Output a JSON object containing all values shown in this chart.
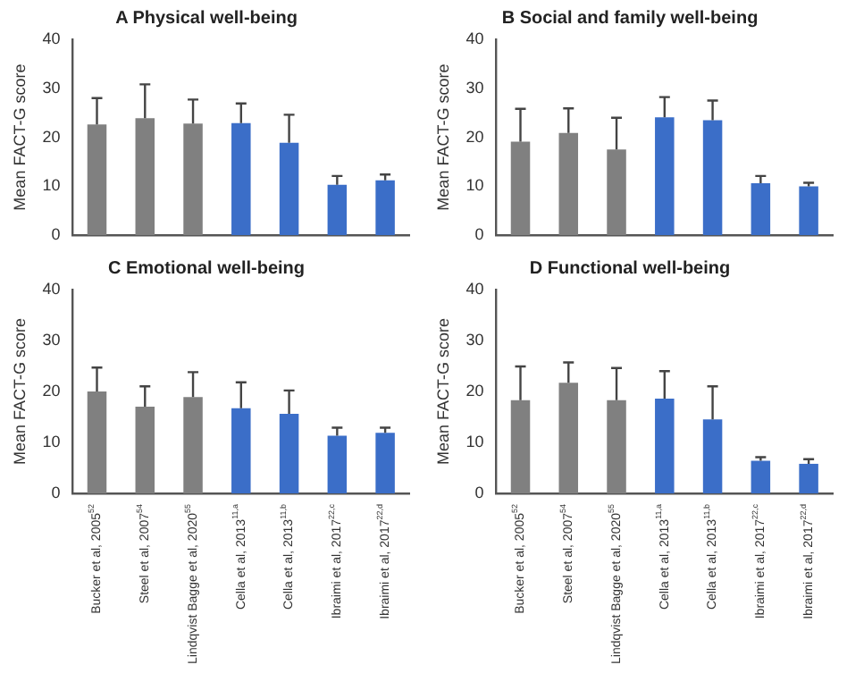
{
  "chart_data": [
    {
      "type": "bar",
      "title": "A Physical well-being",
      "ylabel": "Mean FACT-G score",
      "categories": [
        null,
        null,
        null,
        null,
        null,
        null,
        null
      ],
      "values": [
        22.6,
        23.9,
        22.8,
        22.9,
        18.9,
        10.3,
        11.2
      ],
      "errors": [
        [
          22.6,
          28.0
        ],
        [
          23.9,
          30.8
        ],
        [
          22.8,
          27.7
        ],
        [
          22.9,
          26.9
        ],
        [
          18.9,
          24.6
        ],
        [
          10.3,
          12.1
        ],
        [
          11.2,
          12.4
        ]
      ],
      "colors": [
        "#808080",
        "#808080",
        "#808080",
        "#3b6ec8",
        "#3b6ec8",
        "#3b6ec8",
        "#3b6ec8"
      ],
      "ylim": [
        0,
        40
      ],
      "yticks": [
        0,
        10,
        20,
        30,
        40
      ],
      "grid": false,
      "legend": false,
      "tick_labels": "y"
    },
    {
      "type": "bar",
      "title": "B Social and family well-being",
      "ylabel": "Mean FACT-G score",
      "categories": [
        null,
        null,
        null,
        null,
        null,
        null,
        null
      ],
      "values": [
        19.1,
        20.9,
        17.5,
        24.1,
        23.5,
        10.6,
        10.0
      ],
      "errors": [
        [
          19.1,
          25.8
        ],
        [
          20.9,
          25.9
        ],
        [
          17.5,
          24.0
        ],
        [
          24.1,
          28.2
        ],
        [
          23.5,
          27.5
        ],
        [
          10.6,
          12.1
        ],
        [
          10.0,
          10.7
        ]
      ],
      "colors": [
        "#808080",
        "#808080",
        "#808080",
        "#3b6ec8",
        "#3b6ec8",
        "#3b6ec8",
        "#3b6ec8"
      ],
      "ylim": [
        0,
        40
      ],
      "yticks": [
        0,
        10,
        20,
        30,
        40
      ],
      "grid": false,
      "legend": false,
      "tick_labels": "y"
    },
    {
      "type": "bar",
      "title": "C Emotional well-being",
      "ylabel": "Mean FACT-G score",
      "categories": [
        "Bucker et al, 2005$^{52}$",
        "Steel et al, 2007$^{54}$",
        "Lindqvist Bagge et al, 2020$^{55}$",
        "Cella et al, 2013$^{11,a}$",
        "Cella et al, 2013$^{11,b}$",
        "Ibraimi et al, 2017$^{22,c}$",
        "Ibraimi et al, 2017$^{22,d}$"
      ],
      "values": [
        20.0,
        17.0,
        18.9,
        16.7,
        15.6,
        11.3,
        11.9
      ],
      "errors": [
        [
          20.0,
          24.7
        ],
        [
          17.0,
          21.0
        ],
        [
          18.9,
          23.8
        ],
        [
          16.7,
          21.8
        ],
        [
          15.6,
          20.2
        ],
        [
          11.3,
          12.9
        ],
        [
          11.9,
          12.9
        ]
      ],
      "colors": [
        "#808080",
        "#808080",
        "#808080",
        "#3b6ec8",
        "#3b6ec8",
        "#3b6ec8",
        "#3b6ec8"
      ],
      "ylim": [
        0,
        40
      ],
      "yticks": [
        0,
        10,
        20,
        30,
        40
      ],
      "grid": false,
      "legend": false
    },
    {
      "type": "bar",
      "title": "D Functional well-being",
      "ylabel": "Mean FACT-G score",
      "categories": [
        "Bucker et al, 2005$^{52}$",
        "Steel et al, 2007$^{54}$",
        "Lindqvist Bagge et al, 2020$^{55}$",
        "Cella et al, 2013$^{11,a}$",
        "Cella et al, 2013$^{11,b}$",
        "Ibraimi et al, 2017$^{22,c}$",
        "Ibraimi et al, 2017$^{22,d}$"
      ],
      "values": [
        18.3,
        21.7,
        18.3,
        18.6,
        14.5,
        6.4,
        5.8
      ],
      "errors": [
        [
          18.3,
          24.9
        ],
        [
          21.7,
          25.7
        ],
        [
          18.3,
          24.6
        ],
        [
          18.6,
          24.0
        ],
        [
          14.5,
          21.0
        ],
        [
          6.4,
          7.1
        ],
        [
          5.8,
          6.7
        ]
      ],
      "colors": [
        "#808080",
        "#808080",
        "#808080",
        "#3b6ec8",
        "#3b6ec8",
        "#3b6ec8",
        "#3b6ec8"
      ],
      "ylim": [
        0,
        40
      ],
      "yticks": [
        0,
        10,
        20,
        30,
        40
      ],
      "grid": false,
      "legend": false
    }
  ]
}
